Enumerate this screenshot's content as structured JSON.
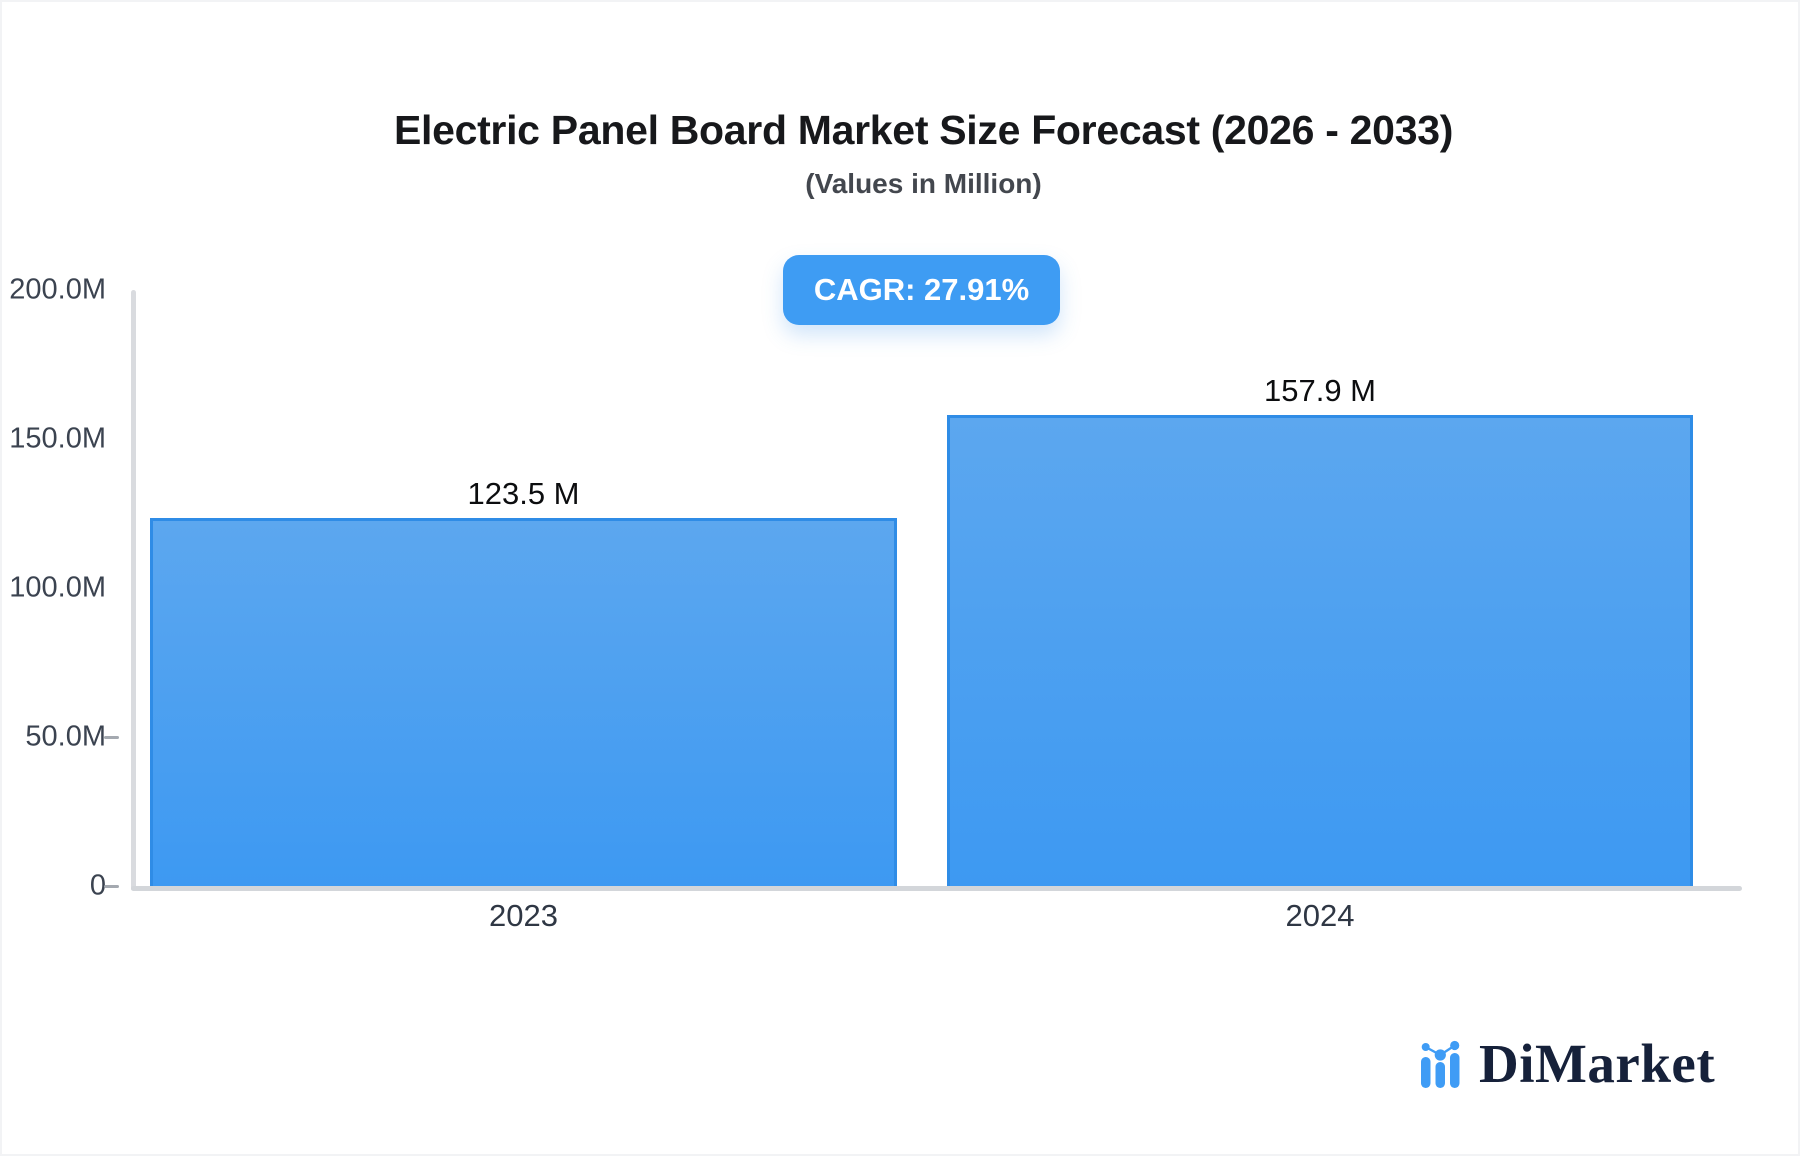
{
  "header": {
    "title": "Electric Panel Board Market Size Forecast (2026 - 2033)",
    "subtitle": "(Values in Million)",
    "cagr_badge_label": "CAGR: 27.91%"
  },
  "chart_data": {
    "type": "bar",
    "title": "Electric Panel Board Market Size Forecast (2026 - 2033)",
    "subtitle": "(Values in Million)",
    "cagr_percent": 27.91,
    "categories": [
      "2023",
      "2024"
    ],
    "values": [
      123.5,
      157.9
    ],
    "value_labels": [
      "123.5 M",
      "157.9 M"
    ],
    "unit": "Million",
    "ylim": [
      0,
      200
    ],
    "ytick_labels": [
      "200.0M",
      "150.0M",
      "100.0M",
      "50.0M",
      "0"
    ],
    "grid": false,
    "legend": false
  },
  "brand": {
    "name": "DiMarket",
    "logo_icon": "mini-bar-chart-logo-icon"
  },
  "colors": {
    "bar_gradient_top": "#5ca7ef",
    "bar_gradient_bottom": "#3d99f2",
    "bar_border": "#2f8ce6",
    "badge_bg": "#3e9cf3",
    "badge_text": "#ffffff",
    "axis_line": "#d7dade",
    "tick_label_color": "#3b4350",
    "brand_navy": "#16213a",
    "brand_blue": "#3f9cf5"
  }
}
